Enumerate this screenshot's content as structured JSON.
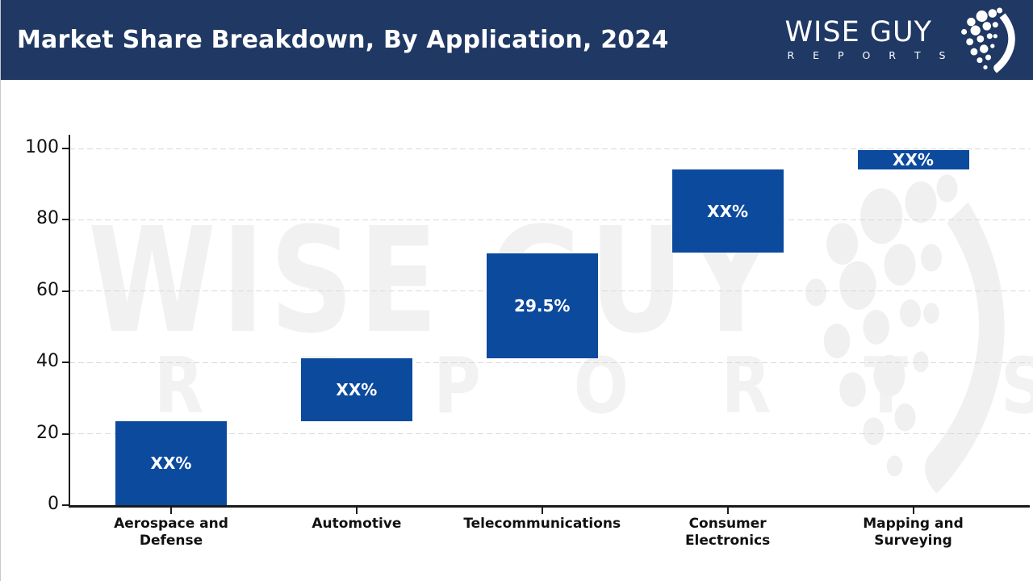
{
  "header": {
    "title": "Market Share Breakdown, By Application, 2024",
    "logo": {
      "line1": "WISE GUY",
      "line2": "R E P O R T S"
    },
    "bg_color": "#1f3864",
    "text_color": "#ffffff"
  },
  "watermark": {
    "line1": "WISE GUY",
    "line2": "R E P O R T S"
  },
  "chart_data": {
    "type": "bar",
    "subtype": "waterfall (floating percentage segments summing to ~100)",
    "title": "Market Share Breakdown, By Application, 2024",
    "categories": [
      "Aerospace and Defense",
      "Automotive",
      "Telecommunications",
      "Consumer Electronics",
      "Mapping and Surveying"
    ],
    "category_label_lines": [
      [
        "Aerospace and",
        "Defense"
      ],
      [
        "Automotive"
      ],
      [
        "Telecommunications"
      ],
      [
        "Consumer",
        "Electronics"
      ],
      [
        "Mapping and",
        "Surveying"
      ]
    ],
    "segments": [
      {
        "category": "Aerospace and Defense",
        "start": 0,
        "end": 23.5,
        "label": "XX%"
      },
      {
        "category": "Automotive",
        "start": 23.5,
        "end": 41.2,
        "label": "XX%"
      },
      {
        "category": "Telecommunications",
        "start": 41.2,
        "end": 70.7,
        "label": "29.5%",
        "value": 29.5
      },
      {
        "category": "Consumer Electronics",
        "start": 70.7,
        "end": 94.1,
        "label": "XX%"
      },
      {
        "category": "Mapping and Surveying",
        "start": 94.1,
        "end": 99.5,
        "label": "XX%"
      }
    ],
    "xlabel": "",
    "ylabel": "",
    "yticks": [
      0,
      20,
      40,
      60,
      80,
      100
    ],
    "ylim": [
      0,
      104
    ],
    "grid": "horizontal-dashed",
    "legend": false,
    "bar_color": "#0c4a9e",
    "bar_label_color": "#ffffff"
  }
}
